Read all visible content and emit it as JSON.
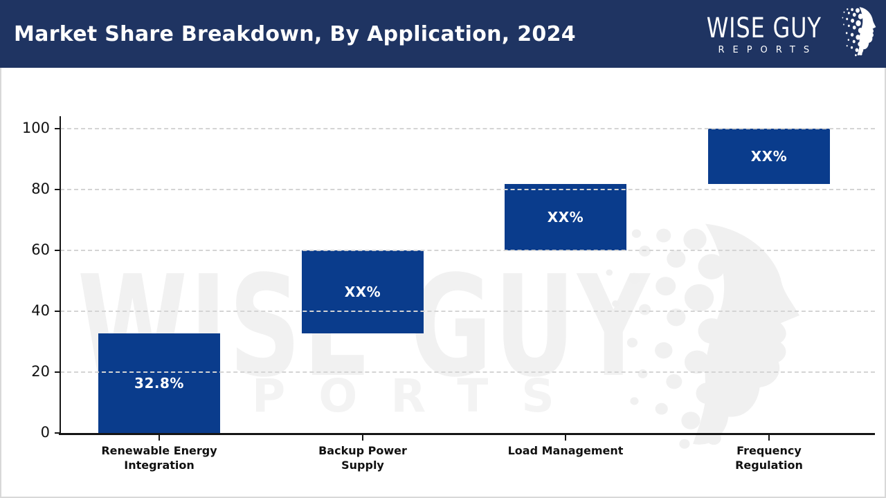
{
  "header": {
    "title": "Market Share Breakdown, By Application, 2024",
    "logo": {
      "wordmark": "WISE GUY",
      "subtitle": "REPORTS"
    }
  },
  "watermark": {
    "wordmark": "WISE GUY",
    "subtitle": "REPORTS"
  },
  "colors": {
    "header_background": "#1f3462",
    "bar_fill": "#0a3c8c",
    "bar_value_text": "#ffffff",
    "title_text": "#ffffff",
    "axis": "#151515",
    "gridline": "#d4d4d4",
    "watermark_gray": "#f0f0f0"
  },
  "chart_data": {
    "type": "bar",
    "subtype": "waterfall",
    "title": "Market Share Breakdown, By Application, 2024",
    "categories": [
      "Renewable Energy\nIntegration",
      "Backup Power\nSupply",
      "Load Management",
      "Frequency\nRegulation"
    ],
    "series": [
      {
        "name": "Market Share",
        "segments": [
          {
            "start": 0,
            "end": 32.8,
            "value": 32.8,
            "label": "32.8%"
          },
          {
            "start": 32.8,
            "end": 60,
            "value": 27.2,
            "label": "XX%"
          },
          {
            "start": 60,
            "end": 81.8,
            "value": 21.8,
            "label": "XX%"
          },
          {
            "start": 81.8,
            "end": 100,
            "value": 18.2,
            "label": "XX%"
          }
        ]
      }
    ],
    "xlabel": "",
    "ylabel": "",
    "ylim": [
      0,
      100
    ],
    "yticks": [
      0,
      20,
      40,
      60,
      80,
      100
    ],
    "grid": "horizontal-dashed",
    "legend": "none",
    "bar_color": "#0a3c8c"
  }
}
